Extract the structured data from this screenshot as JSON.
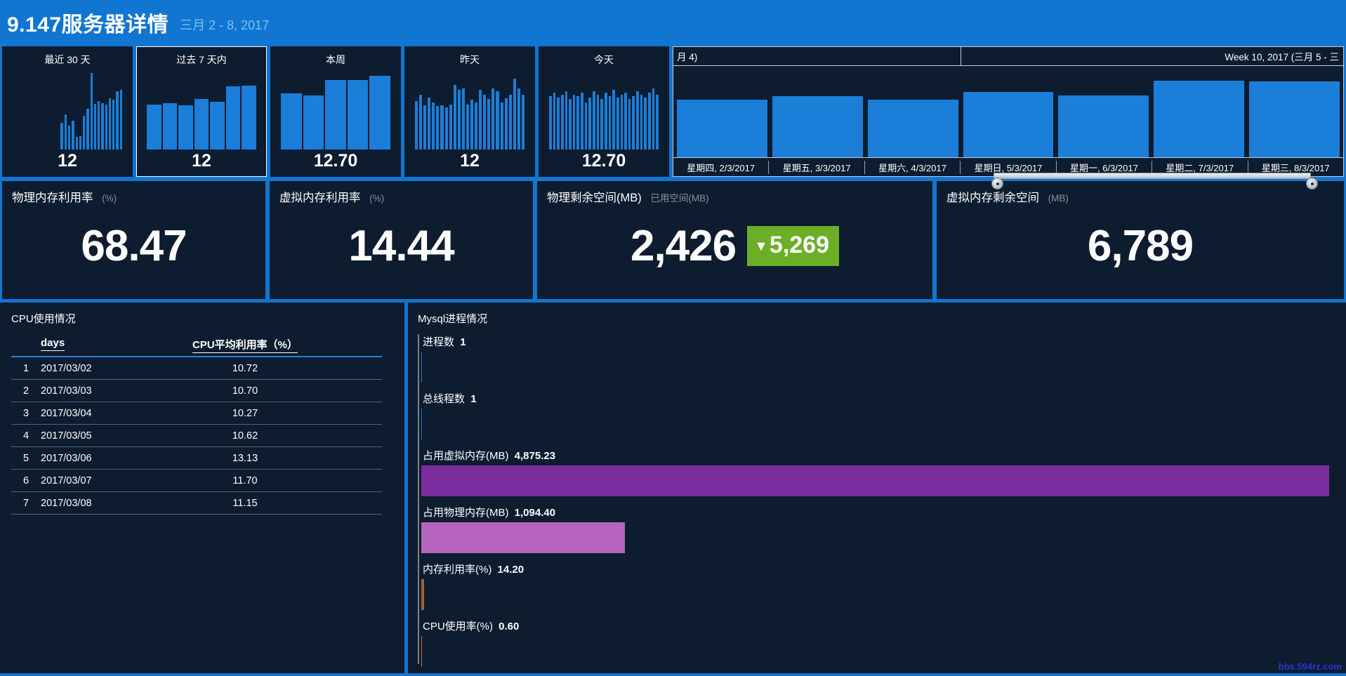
{
  "header": {
    "title": "9.147服务器详情",
    "date_range": "三月 2 - 8, 2017"
  },
  "colors": {
    "page_blue": "#1175d2",
    "panel_dark": "#0d1c2f",
    "bar_blue": "#1b7ed8",
    "badge_green": "#6cae27",
    "bar_purple": "#7b2d9e",
    "bar_orchid": "#b565bd",
    "bar_orange": "#a9602a",
    "subtitle_gray": "#8593a2"
  },
  "mini_cards": [
    {
      "label": "最近 30 天",
      "value": "12",
      "selected": false,
      "bars": [
        0,
        0,
        0,
        0,
        0,
        0,
        0,
        0,
        0,
        0,
        0,
        0,
        0,
        0.34,
        0.45,
        0.3,
        0.37,
        0.16,
        0.17,
        0.43,
        0.52,
        0.97,
        0.58,
        0.62,
        0.59,
        0.57,
        0.65,
        0.63,
        0.74,
        0.76
      ]
    },
    {
      "label": "过去 7 天内",
      "value": "12",
      "selected": true,
      "bars": [
        0.57,
        0.59,
        0.56,
        0.64,
        0.61,
        0.8,
        0.81
      ]
    },
    {
      "label": "本周",
      "value": "12.70",
      "selected": false,
      "bars": [
        0.71,
        0.69,
        0.88,
        0.88,
        0.94
      ]
    },
    {
      "label": "昨天",
      "value": "12",
      "selected": false,
      "bars": [
        0.62,
        0.7,
        0.56,
        0.66,
        0.6,
        0.55,
        0.56,
        0.54,
        0.57,
        0.82,
        0.76,
        0.78,
        0.57,
        0.63,
        0.6,
        0.76,
        0.7,
        0.64,
        0.78,
        0.74,
        0.6,
        0.65,
        0.7,
        0.9,
        0.78,
        0.7
      ]
    },
    {
      "label": "今天",
      "value": "12.70",
      "selected": false,
      "bars": [
        0.68,
        0.72,
        0.66,
        0.7,
        0.74,
        0.64,
        0.7,
        0.68,
        0.72,
        0.6,
        0.66,
        0.74,
        0.7,
        0.64,
        0.72,
        0.68,
        0.76,
        0.66,
        0.7,
        0.72,
        0.64,
        0.68,
        0.74,
        0.7,
        0.66,
        0.72,
        0.78,
        0.7
      ]
    }
  ],
  "timeline": {
    "left_label": "月 4)",
    "right_label": "Week 10, 2017 (三月 5 - 三",
    "days": [
      {
        "label": "星期四, 2/3/2017",
        "height": 0.71
      },
      {
        "label": "星期五, 3/3/2017",
        "height": 0.75
      },
      {
        "label": "星期六, 4/3/2017",
        "height": 0.71
      },
      {
        "label": "星期日, 5/3/2017",
        "height": 0.8
      },
      {
        "label": "星期一, 6/3/2017",
        "height": 0.76
      },
      {
        "label": "星期二, 7/3/2017",
        "height": 0.94
      },
      {
        "label": "星期三, 8/3/2017",
        "height": 0.93
      }
    ]
  },
  "kpi_cards": [
    {
      "title": "物理内存利用率",
      "subtitle": "(%)",
      "value": "68.47"
    },
    {
      "title": "虚拟内存利用率",
      "subtitle": "(%)",
      "value": "14.44"
    },
    {
      "title": "物理剩余空间(MB)",
      "subtitle": "已用空间(MB)",
      "value": "2,426",
      "delta": "5,269",
      "delta_arrow": "▼"
    },
    {
      "title": "虚拟内存剩余空间",
      "subtitle": "(MB)",
      "value": "6,789"
    }
  ],
  "cpu_table": {
    "title": "CPU使用情况",
    "columns": [
      "days",
      "CPU平均利用率（%）"
    ],
    "rows": [
      {
        "index": "1",
        "date": "2017/03/02",
        "value": "10.72"
      },
      {
        "index": "2",
        "date": "2017/03/03",
        "value": "10.70"
      },
      {
        "index": "3",
        "date": "2017/03/04",
        "value": "10.27"
      },
      {
        "index": "4",
        "date": "2017/03/05",
        "value": "10.62"
      },
      {
        "index": "5",
        "date": "2017/03/06",
        "value": "13.13"
      },
      {
        "index": "6",
        "date": "2017/03/07",
        "value": "11.70"
      },
      {
        "index": "7",
        "date": "2017/03/08",
        "value": "11.15"
      }
    ]
  },
  "mysql_panel": {
    "title": "Mysql进程情况",
    "scale_max": 4875.23,
    "items": [
      {
        "label": "进程数",
        "value": "1",
        "numeric": 1,
        "color": "#1b7ed8"
      },
      {
        "label": "总线程数",
        "value": "1",
        "numeric": 1,
        "color": "#1b7ed8"
      },
      {
        "label": "占用虚拟内存(MB)",
        "value": "4,875.23",
        "numeric": 4875.23,
        "color": "#7b2d9e"
      },
      {
        "label": "占用物理内存(MB)",
        "value": "1,094.40",
        "numeric": 1094.4,
        "color": "#b565bd"
      },
      {
        "label": "内存利用率(%)",
        "value": "14.20",
        "numeric": 14.2,
        "color": "#a9602a"
      },
      {
        "label": "CPU使用率(%)",
        "value": "0.60",
        "numeric": 0.6,
        "color": "#d8671d"
      }
    ]
  },
  "watermark": "bbs.594rz.com",
  "chart_data": [
    {
      "type": "bar",
      "orientation": "horizontal",
      "title": "Mysql进程情况",
      "categories": [
        "进程数",
        "总线程数",
        "占用虚拟内存(MB)",
        "占用物理内存(MB)",
        "内存利用率(%)",
        "CPU使用率(%)"
      ],
      "values": [
        1,
        1,
        4875.23,
        1094.4,
        14.2,
        0.6
      ]
    },
    {
      "type": "table",
      "title": "CPU使用情况",
      "columns": [
        "days",
        "CPU平均利用率（%）"
      ],
      "rows": [
        [
          "2017/03/02",
          10.72
        ],
        [
          "2017/03/03",
          10.7
        ],
        [
          "2017/03/04",
          10.27
        ],
        [
          "2017/03/05",
          10.62
        ],
        [
          "2017/03/06",
          13.13
        ],
        [
          "2017/03/07",
          11.7
        ],
        [
          "2017/03/08",
          11.15
        ]
      ]
    }
  ]
}
